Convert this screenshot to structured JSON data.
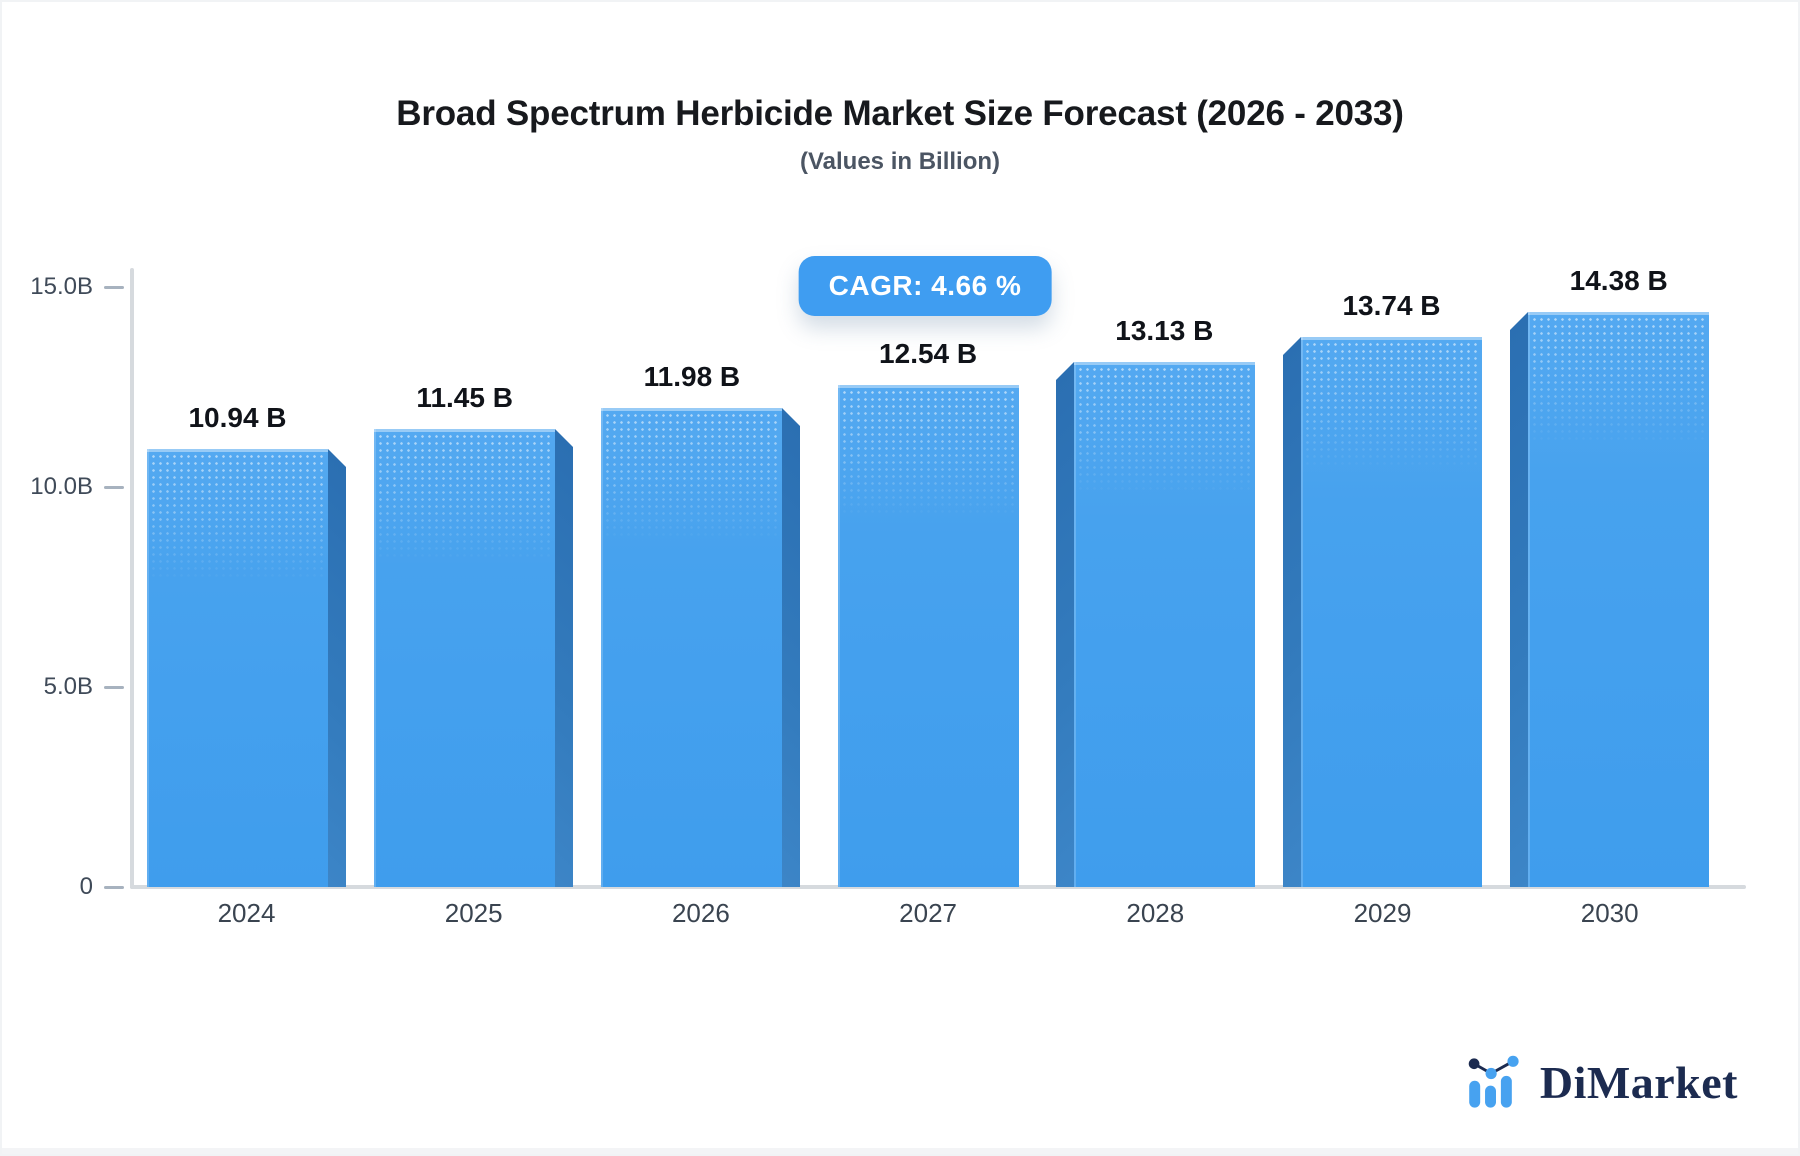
{
  "header": {
    "title": "Broad Spectrum Herbicide Market Size Forecast (2026 - 2033)",
    "subtitle": "(Values in Billion)"
  },
  "badge": {
    "label": "CAGR: 4.66 %"
  },
  "chart_data": {
    "type": "bar",
    "title": "Broad Spectrum Herbicide Market Size Forecast (2026 - 2033)",
    "subtitle": "(Values in Billion)",
    "categories": [
      "2024",
      "2025",
      "2026",
      "2027",
      "2028",
      "2029",
      "2030"
    ],
    "values": [
      10.94,
      11.45,
      11.98,
      12.54,
      13.13,
      13.74,
      14.38
    ],
    "value_labels": [
      "10.94 B",
      "11.45 B",
      "11.98 B",
      "12.54 B",
      "13.13 B",
      "13.74 B",
      "14.38 B"
    ],
    "xlabel": "",
    "ylabel": "",
    "ylim": [
      0,
      15
    ],
    "y_ticks": [
      {
        "label": "15.0B",
        "value": 15
      },
      {
        "label": "10.0B",
        "value": 10
      },
      {
        "label": "5.0B",
        "value": 5
      },
      {
        "label": "0",
        "value": 0
      }
    ],
    "annotation": "CAGR: 4.66 %",
    "grid": false,
    "legend_position": "none",
    "colors": {
      "bar_fill": "#47A2EE",
      "bar_fill_light": "#54A9F1",
      "bar_side": "#2E74B6",
      "axis": "#D6DADE",
      "tick_text": "#3F4A58",
      "value_text": "#101319",
      "badge_bg": "#3F9DF1",
      "badge_text": "#FFFFFF"
    }
  },
  "brand": {
    "name": "DiMarket",
    "icon": "bar-chart-logo-icon"
  }
}
